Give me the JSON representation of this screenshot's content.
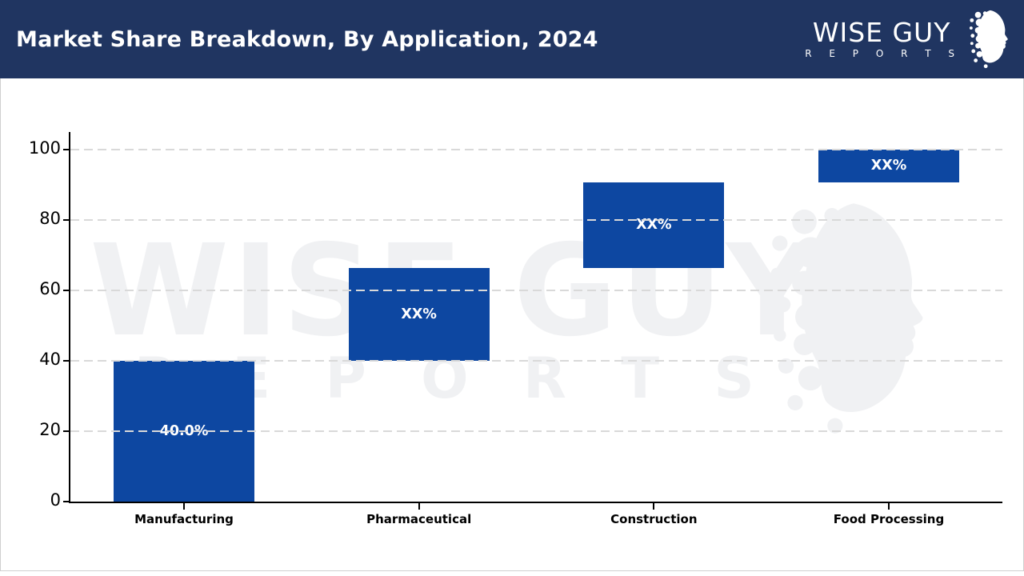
{
  "header": {
    "title": "Market Share Breakdown, By Application, 2024",
    "bg_color": "#203561",
    "logo": {
      "line1": "WISE GUY",
      "line2": "R E P O R T S",
      "icon": "face-profile-dots-icon"
    }
  },
  "watermark": {
    "line1": "WISE GUY",
    "line2": "R E P O R T S",
    "icon": "face-profile-dots-watermark",
    "color": "#f0f1f3"
  },
  "chart_data": {
    "type": "bar",
    "subtype": "waterfall",
    "title": "Market Share Breakdown, By Application, 2024",
    "categories": [
      "Manufacturing",
      "Pharmaceutical",
      "Construction",
      "Food Processing"
    ],
    "segments": [
      {
        "category": "Manufacturing",
        "start": 0,
        "end": 40,
        "label": "40.0%"
      },
      {
        "category": "Pharmaceutical",
        "start": 40,
        "end": 66.4,
        "label": "XX%"
      },
      {
        "category": "Construction",
        "start": 66.4,
        "end": 90.7,
        "label": "XX%"
      },
      {
        "category": "Food Processing",
        "start": 90.7,
        "end": 100,
        "label": "XX%"
      }
    ],
    "yticks": [
      0,
      20,
      40,
      60,
      80,
      100
    ],
    "ylim": [
      0,
      100
    ],
    "xlabel": "",
    "ylabel": "",
    "grid": "horizontal-dashed",
    "gridline_color": "#d9d9d9",
    "bar_color": "#0d47a1",
    "bar_label_color": "#ffffff",
    "legend": "none"
  }
}
